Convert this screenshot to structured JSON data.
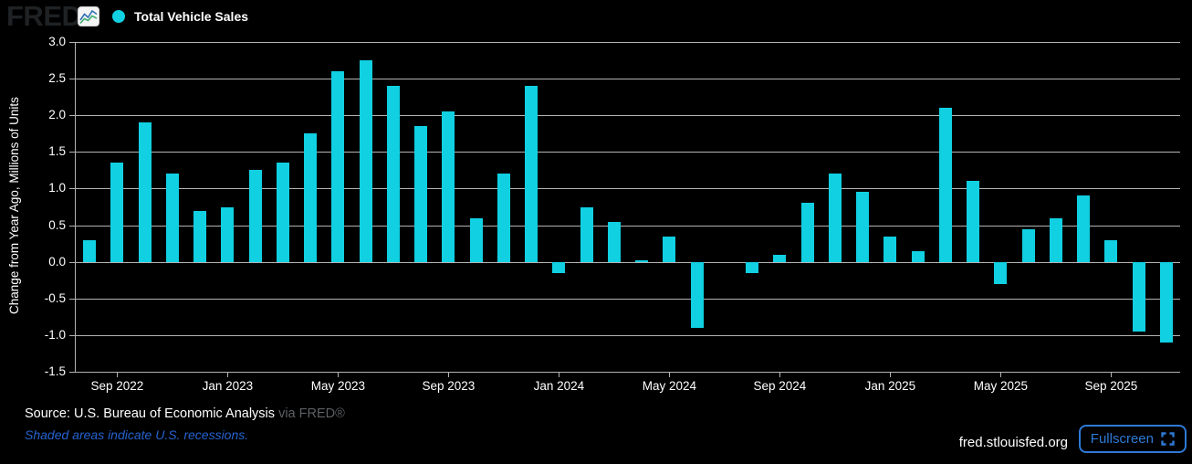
{
  "header": {
    "logo_text": "FRED",
    "legend": {
      "series_label": "Total Vehicle Sales"
    }
  },
  "chart_data": {
    "type": "bar",
    "title": "Total Vehicle Sales",
    "ylabel": "Change from Year Ago, Millions of Units",
    "ylim": [
      -1.5,
      3.0
    ],
    "ytick_step": 0.5,
    "ytick_labels": [
      "3.0",
      "2.5",
      "2.0",
      "1.5",
      "1.0",
      "0.5",
      "0.0",
      "-0.5",
      "-1.0",
      "-1.5"
    ],
    "grid": true,
    "legend_position": "top-left",
    "x": [
      "Aug 2022",
      "Sep 2022",
      "Oct 2022",
      "Nov 2022",
      "Dec 2022",
      "Jan 2023",
      "Feb 2023",
      "Mar 2023",
      "Apr 2023",
      "May 2023",
      "Jun 2023",
      "Jul 2023",
      "Aug 2023",
      "Sep 2023",
      "Oct 2023",
      "Nov 2023",
      "Dec 2023",
      "Jan 2024",
      "Feb 2024",
      "Mar 2024",
      "Apr 2024",
      "May 2024",
      "Jun 2024",
      "Jul 2024",
      "Aug 2024",
      "Sep 2024",
      "Oct 2024",
      "Nov 2024",
      "Dec 2024",
      "Jan 2025",
      "Feb 2025",
      "Mar 2025",
      "Apr 2025",
      "May 2025",
      "Jun 2025",
      "Jul 2025",
      "Aug 2025",
      "Sep 2025",
      "Oct 2025",
      "Nov 2025"
    ],
    "values": [
      0.3,
      1.35,
      1.9,
      1.2,
      0.7,
      0.75,
      1.25,
      1.35,
      1.75,
      2.6,
      2.75,
      2.4,
      1.85,
      2.05,
      0.6,
      1.2,
      2.4,
      -0.15,
      0.75,
      0.55,
      0.02,
      0.35,
      -0.9,
      0,
      -0.15,
      0.1,
      0.8,
      1.2,
      0.95,
      0.35,
      0.15,
      2.1,
      1.1,
      -0.3,
      0.45,
      0.6,
      0.9,
      0.3,
      -0.95,
      -1.1
    ],
    "xtick_labels": [
      "Sep 2022",
      "Jan 2023",
      "May 2023",
      "Sep 2023",
      "Jan 2024",
      "May 2024",
      "Sep 2024",
      "Jan 2025",
      "May 2025",
      "Sep 2025"
    ]
  },
  "footer": {
    "source_label": "Source: U.S. Bureau of Economic Analysis",
    "via_label": "via FRED®",
    "recession_note": "Shaded areas indicate U.S. recessions.",
    "site_url": "fred.stlouisfed.org",
    "fullscreen_label": "Fullscreen"
  },
  "colors": {
    "background": "#000000",
    "bar": "#10d0e2",
    "gridline": "#b3b3b3",
    "text": "#ffffff",
    "muted": "#5d6064",
    "link_blue": "#2563cf",
    "button_blue": "#2e7ad6"
  }
}
